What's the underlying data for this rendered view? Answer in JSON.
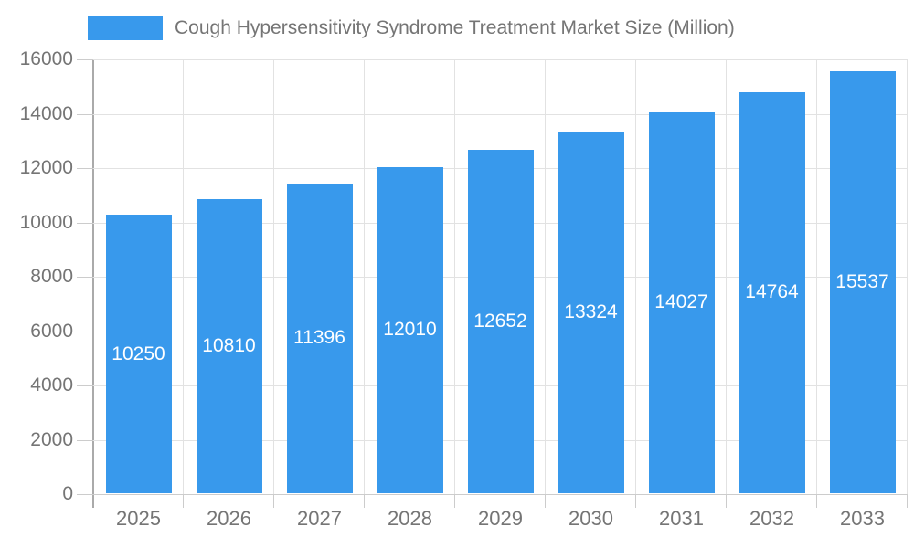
{
  "chart_data": {
    "type": "bar",
    "title": "Cough Hypersensitivity Syndrome Treatment Market Size (Million)",
    "categories": [
      "2025",
      "2026",
      "2027",
      "2028",
      "2029",
      "2030",
      "2031",
      "2032",
      "2033"
    ],
    "values": [
      10250,
      10810,
      11396,
      12010,
      12652,
      13324,
      14027,
      14764,
      15537
    ],
    "xlabel": "",
    "ylabel": "",
    "ylim": [
      0,
      16000
    ],
    "y_ticks": [
      0,
      2000,
      4000,
      6000,
      8000,
      10000,
      12000,
      14000,
      16000
    ],
    "grid": true,
    "legend_position": "top-left",
    "bar_label_position": "inside-center",
    "colors": {
      "bar": "#3899EC",
      "bar_value_label": "#ffffff",
      "axis_text": "#757575",
      "gridline": "#e2e2e2",
      "y_axis_line": "#aaaaaa",
      "tick": "#cccccc"
    }
  }
}
